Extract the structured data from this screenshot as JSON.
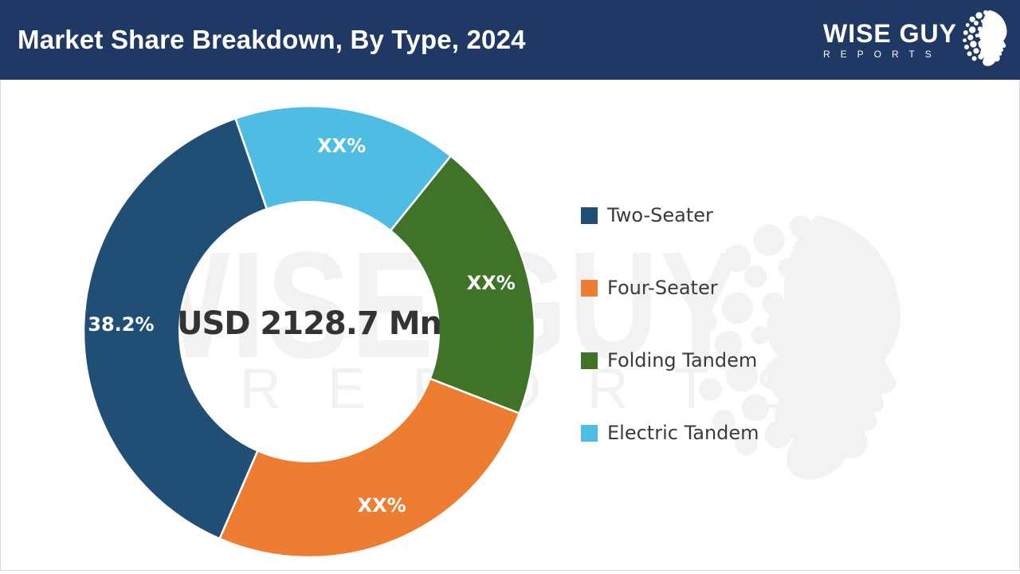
{
  "header": {
    "title": "Market Share Breakdown, By Type, 2024",
    "logo": {
      "name": "WISE GUY",
      "tagline": "REPORTS"
    }
  },
  "watermark": {
    "line1": "WISE GUY",
    "line2": "REPORTS"
  },
  "chart_data": {
    "type": "pie",
    "subtype": "donut",
    "title": "Market Share Breakdown, By Type, 2024",
    "center_label": "USD 2128.7 Mn",
    "unit": "percent share of market",
    "segments": [
      {
        "name": "Two-Seater",
        "value": 38.2,
        "label": "38.2%",
        "color": "#204E74",
        "value_masked": false
      },
      {
        "name": "Four-Seater",
        "value": 25.6,
        "label": "XX%",
        "color": "#ED7D31",
        "value_masked": true
      },
      {
        "name": "Folding Tandem",
        "value": 20.1,
        "label": "XX%",
        "color": "#3E7328",
        "value_masked": true
      },
      {
        "name": "Electric Tandem",
        "value": 16.1,
        "label": "XX%",
        "color": "#4FBCE4",
        "value_masked": true
      }
    ],
    "layout": {
      "start_angle_deg": 203.4,
      "clockwise_draw_order": [
        0,
        3,
        2,
        1
      ],
      "inner_radius_ratio": 0.575,
      "label_radius_ratio": 0.835,
      "legend_position": "right",
      "label_position": "inside",
      "grid": false
    }
  },
  "colors": {
    "header_bg": "#203864",
    "page_bg": "#FFFFFF",
    "frame_border": "#D9D9D9",
    "segment_label_text": "#FFFFFF",
    "center_text": "#333333",
    "legend_text": "#3A3A3A",
    "watermark": "#F2F2F3",
    "logo_text": "#FFFFFF",
    "segment_gap_stroke": "#FFFFFF"
  }
}
